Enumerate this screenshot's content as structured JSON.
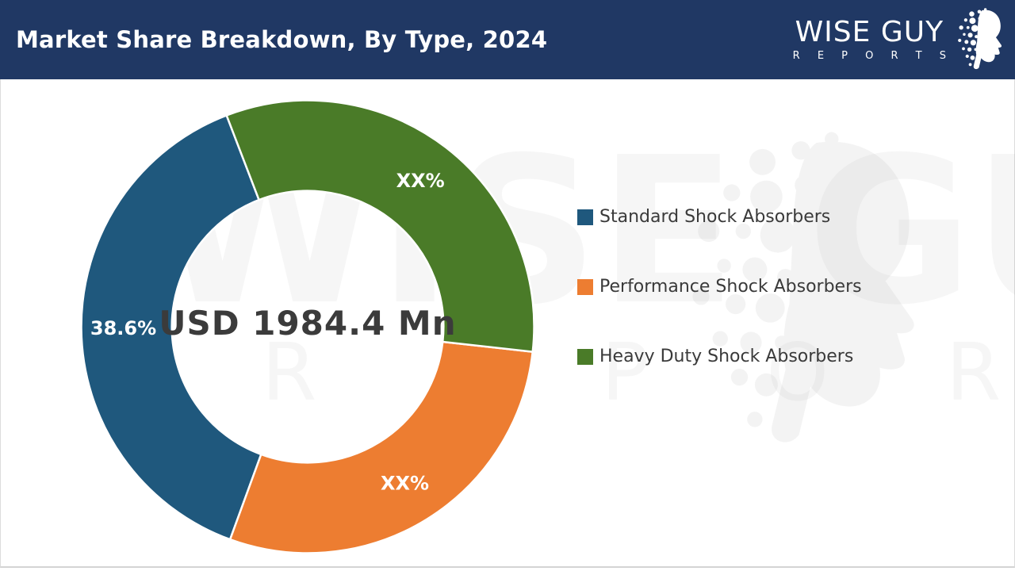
{
  "header": {
    "title": "Market Share Breakdown, By Type, 2024"
  },
  "logo": {
    "name": "WISE GUY",
    "subtitle": "R E P O R T S"
  },
  "watermark": {
    "line1": "WISE GUY",
    "line2": "R E P O R T S"
  },
  "colors": {
    "header_bg": "#203864",
    "blue": "#1F587D",
    "orange": "#ED7D31",
    "green": "#4A7B28",
    "center_text": "#3b3b3b",
    "legend_text": "#3a3a3a"
  },
  "chart_data": {
    "type": "pie",
    "subtype": "donut",
    "title": "Market Share Breakdown, By Type, 2024",
    "center_label": "USD 1984.4 Mn",
    "start_angle_deg": 339,
    "direction": "counterclockwise",
    "inner_radius_ratio": 0.6,
    "label_radius_ratio": 0.81,
    "segments": [
      {
        "name": "Standard Shock Absorbers",
        "value_pct": 38.6,
        "label": "38.6%",
        "color": "#1F587D"
      },
      {
        "name": "Performance Shock Absorbers",
        "value_pct": 28.8,
        "label": "XX%",
        "color": "#ED7D31"
      },
      {
        "name": "Heavy Duty Shock Absorbers",
        "value_pct": 32.6,
        "label": "XX%",
        "color": "#4A7B28"
      }
    ],
    "legend_position": "right",
    "grid": false
  },
  "legend": {
    "items": [
      {
        "label": "Standard Shock Absorbers",
        "color": "#1F587D"
      },
      {
        "label": "Performance Shock Absorbers",
        "color": "#ED7D31"
      },
      {
        "label": "Heavy Duty Shock Absorbers",
        "color": "#4A7B28"
      }
    ]
  }
}
